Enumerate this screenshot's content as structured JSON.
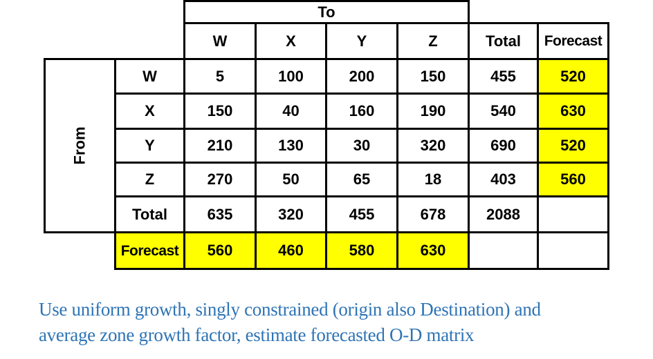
{
  "table": {
    "to_header": "To",
    "from_header": "From",
    "col_headers": [
      "W",
      "X",
      "Y",
      "Z",
      "Total",
      "Forecast"
    ],
    "rows": [
      {
        "label": "W",
        "cells": [
          "5",
          "100",
          "200",
          "150",
          "455",
          "520"
        ]
      },
      {
        "label": "X",
        "cells": [
          "150",
          "40",
          "160",
          "190",
          "540",
          "630"
        ]
      },
      {
        "label": "Y",
        "cells": [
          "210",
          "130",
          "30",
          "320",
          "690",
          "520"
        ]
      },
      {
        "label": "Z",
        "cells": [
          "270",
          "50",
          "65",
          "18",
          "403",
          "560"
        ]
      },
      {
        "label": "Total",
        "cells": [
          "635",
          "320",
          "455",
          "678",
          "2088",
          ""
        ]
      },
      {
        "label": "Forecast",
        "cells": [
          "560",
          "460",
          "580",
          "630",
          "",
          ""
        ]
      }
    ],
    "highlight_color": "#FFFF00",
    "border_color": "#000000"
  },
  "caption": {
    "line1": "Use uniform growth, singly constrained (origin also Destination) and",
    "line2": "average zone growth factor, estimate forecasted O-D matrix",
    "color": "#2E74B5"
  }
}
